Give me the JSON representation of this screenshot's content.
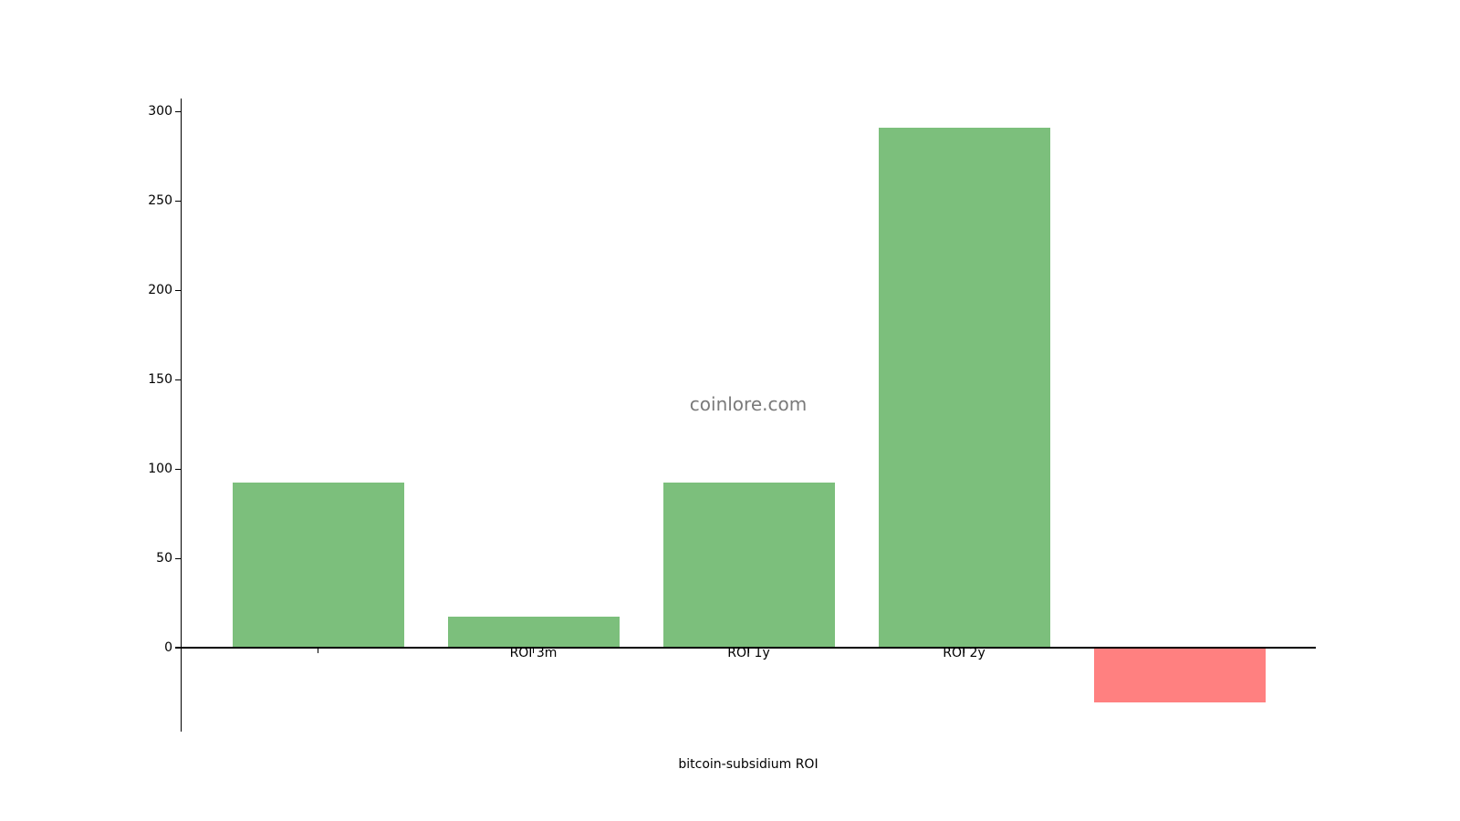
{
  "watermark": "coinlore.com",
  "chart_data": {
    "type": "bar",
    "title": "",
    "xlabel": "bitcoin-subsidium ROI",
    "ylabel": "",
    "categories": [
      "",
      "ROI 3m",
      "ROI 1y",
      "ROI 2y",
      ""
    ],
    "values": [
      92.6,
      17.3,
      92.6,
      291.3,
      -30.6
    ],
    "yticks": [
      0,
      50,
      100,
      150,
      200,
      250,
      300
    ],
    "ylim": [
      -46.7,
      307.4
    ],
    "grid": false,
    "legend": null,
    "background": "#ffffff",
    "colors": {
      "positive_bar": "#7cbf7c",
      "negative_bar": "#ff8080",
      "axis": "#000000",
      "watermark_text": "#7a7a7a"
    }
  }
}
